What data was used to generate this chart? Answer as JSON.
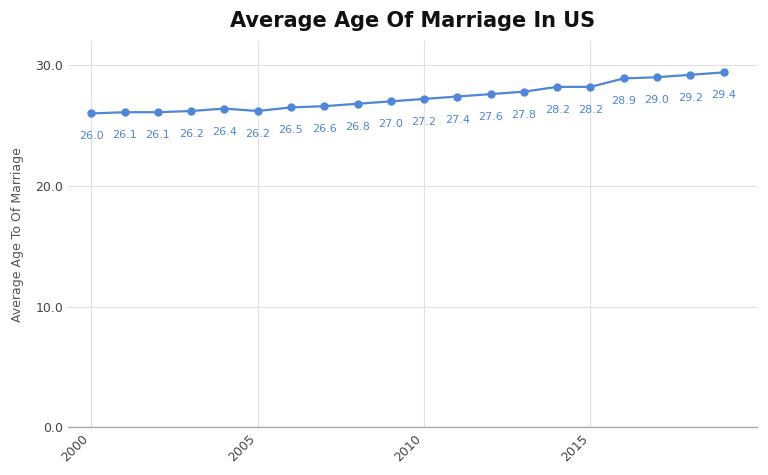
{
  "title": "Average Age Of Marriage In US",
  "ylabel": "Average Age To Of Marriage",
  "years": [
    2000,
    2001,
    2002,
    2003,
    2004,
    2005,
    2006,
    2007,
    2008,
    2009,
    2010,
    2011,
    2012,
    2013,
    2014,
    2015,
    2016,
    2017,
    2018,
    2019
  ],
  "values": [
    26.0,
    26.1,
    26.1,
    26.2,
    26.4,
    26.2,
    26.5,
    26.6,
    26.8,
    27.0,
    27.2,
    27.4,
    27.6,
    27.8,
    28.2,
    28.2,
    28.9,
    29.0,
    29.2,
    29.4
  ],
  "line_color": "#4f86d8",
  "marker_color": "#4f86d8",
  "label_color": "#4f86d8",
  "background_color": "#ffffff",
  "grid_color": "#e0e0e0",
  "ylim": [
    0,
    32
  ],
  "yticks": [
    0.0,
    10.0,
    20.0,
    30.0
  ],
  "xticks": [
    2000,
    2005,
    2010,
    2015
  ],
  "title_fontsize": 15,
  "ylabel_fontsize": 9,
  "tick_fontsize": 9,
  "annotation_fontsize": 8
}
